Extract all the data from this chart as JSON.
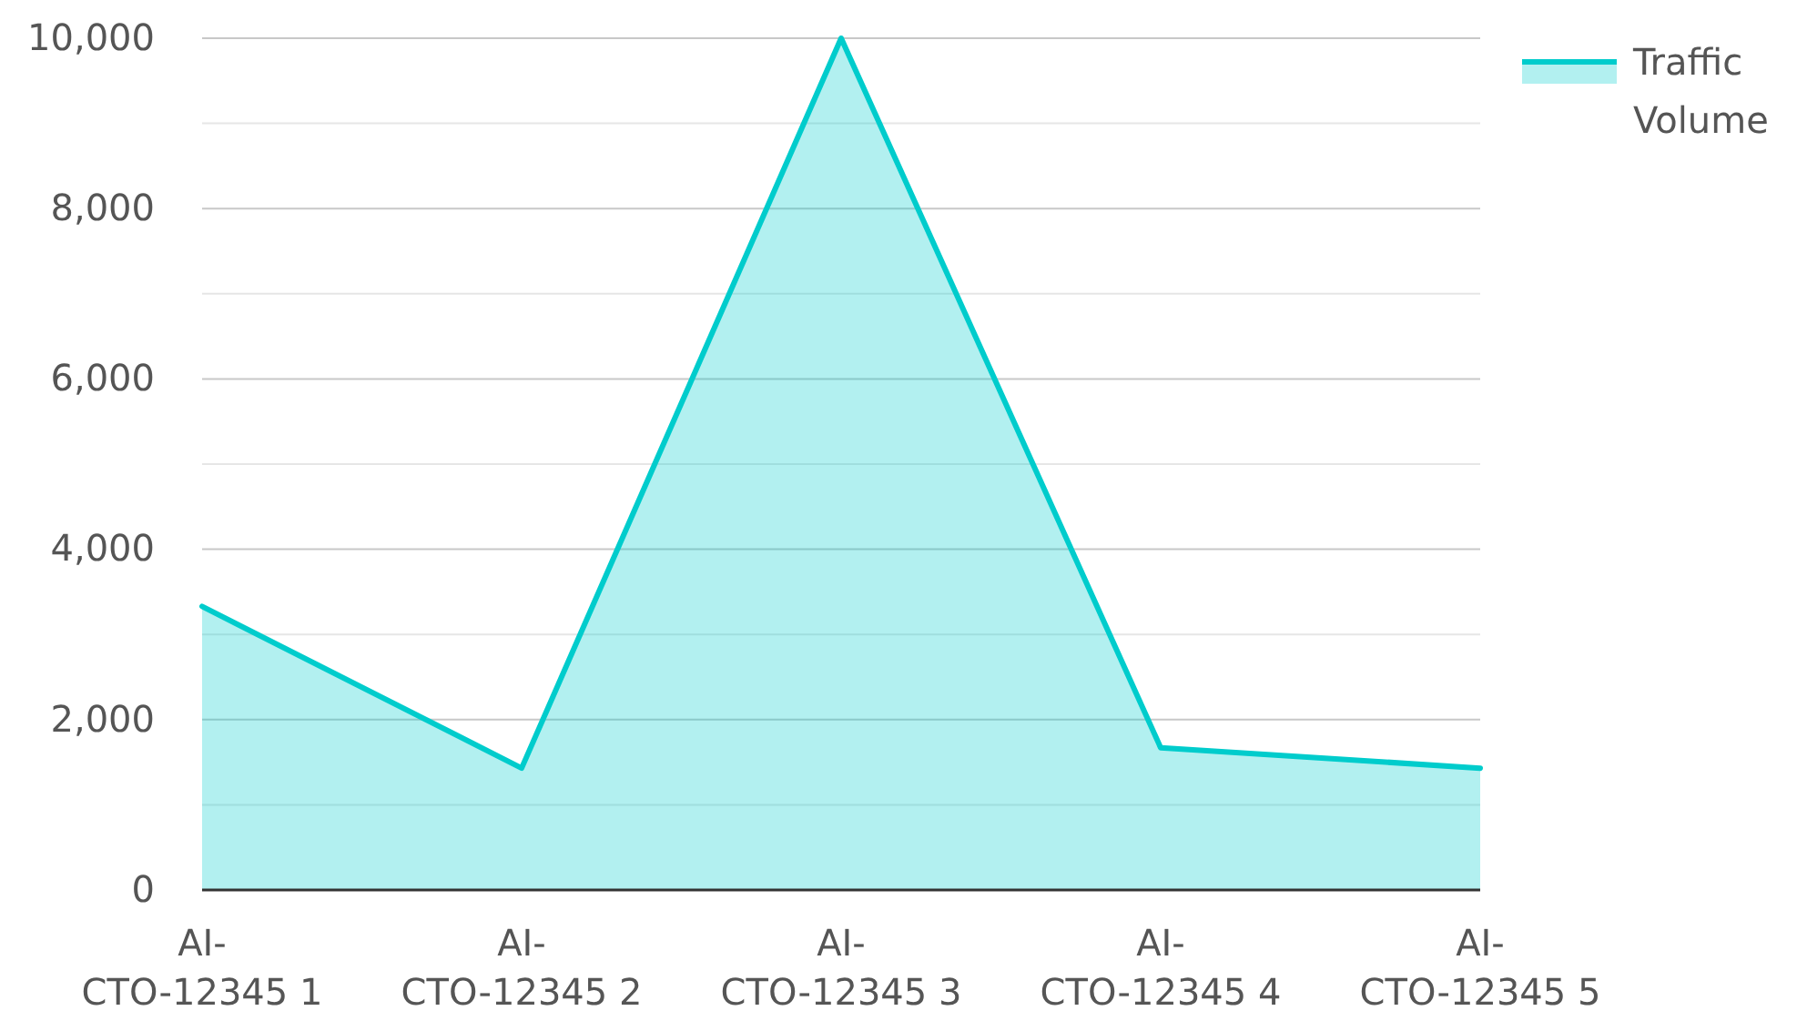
{
  "chart_data": {
    "type": "area",
    "categories": [
      "AI-CTO-12345 1",
      "AI-CTO-12345 2",
      "AI-CTO-12345 3",
      "AI-CTO-12345 4",
      "AI-CTO-12345 5"
    ],
    "series": [
      {
        "name": "Traffic Volume",
        "color": "#00cccc",
        "values": [
          3330,
          1430,
          10000,
          1670,
          1430
        ]
      }
    ],
    "ylim": [
      0,
      10000
    ],
    "yticks": [
      0,
      {
        "value": 1000,
        "label": null
      },
      {
        "value": 2000,
        "label": "2,000"
      },
      {
        "value": 3000,
        "label": null
      },
      {
        "value": 4000,
        "label": "4,000"
      },
      {
        "value": 5000,
        "label": null
      },
      {
        "value": 6000,
        "label": "6,000"
      },
      {
        "value": 7000,
        "label": null
      },
      {
        "value": 8000,
        "label": "8,000"
      },
      {
        "value": 9000,
        "label": null
      },
      {
        "value": 10000,
        "label": "10,000"
      }
    ],
    "grid": "y",
    "legend": "top right"
  }
}
